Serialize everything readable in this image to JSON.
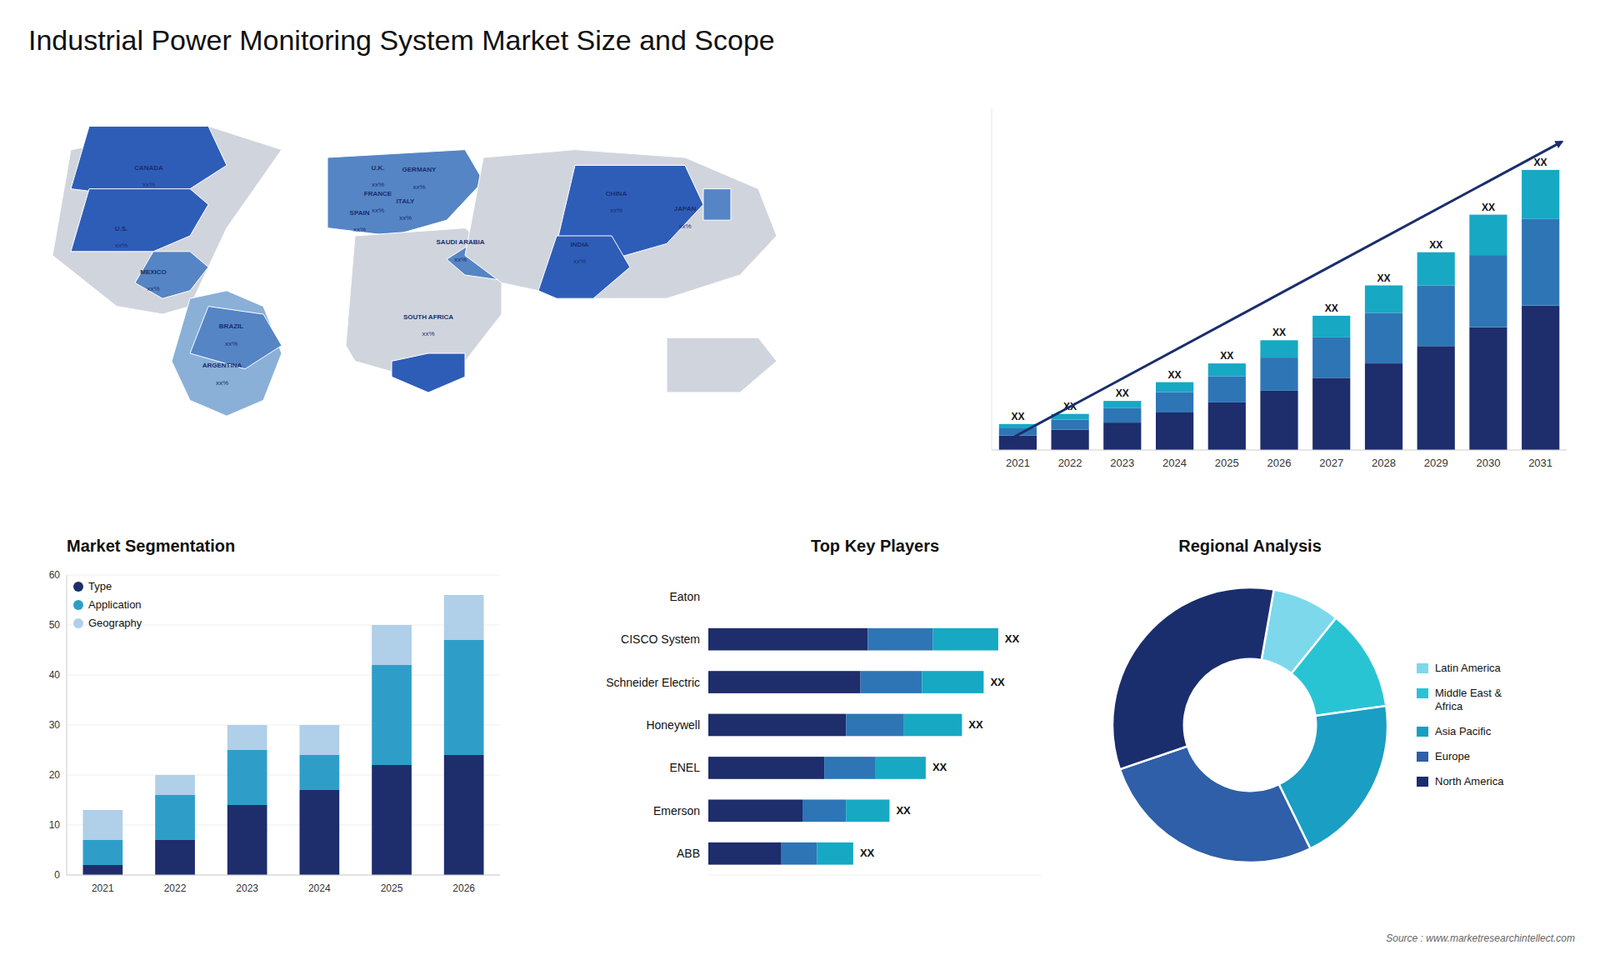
{
  "chart_data": [
    {
      "type": "map",
      "title": "Industrial Power Monitoring System Market Size and Scope",
      "categories": [
        "U.S.",
        "CANADA",
        "MEXICO",
        "BRAZIL",
        "ARGENTINA",
        "U.K.",
        "FRANCE",
        "SPAIN",
        "GERMANY",
        "ITALY",
        "SAUDI ARABIA",
        "SOUTH AFRICA",
        "CHINA",
        "INDIA",
        "JAPAN"
      ],
      "annotations": [
        "xx%",
        "xx%",
        "xx%",
        "xx%",
        "xx%",
        "xx%",
        "xx%",
        "xx%",
        "xx%",
        "xx%",
        "xx%",
        "xx%",
        "xx%",
        "xx%",
        "xx%"
      ],
      "colors": [
        "#2e5db8",
        "#2e5db8",
        "#5585c5",
        "#5585c5",
        "#8ab0d8",
        "#5585c5",
        "#5585c5",
        "#5585c5",
        "#5585c5",
        "#5585c5",
        "#5585c5",
        "#2e5db8",
        "#2e5db8",
        "#2e5db8",
        "#5585c5"
      ],
      "color": "#d0d5dd"
    },
    {
      "type": "bar",
      "stacked": true,
      "categories": [
        "2021",
        "2022",
        "2023",
        "2024",
        "2025",
        "2026",
        "2027",
        "2028",
        "2029",
        "2030",
        "2031"
      ],
      "series": [
        {
          "color": "#1e2d6b",
          "values": [
            1.0,
            1.4,
            1.9,
            2.6,
            3.3,
            4.1,
            5.0,
            6.0,
            7.2,
            8.5,
            10.0
          ]
        },
        {
          "color": "#2e75b6",
          "values": [
            0.5,
            0.7,
            1.0,
            1.4,
            1.8,
            2.3,
            2.8,
            3.5,
            4.2,
            5.0,
            6.0
          ]
        },
        {
          "color": "#17a8c4",
          "values": [
            0.3,
            0.4,
            0.5,
            0.7,
            0.9,
            1.2,
            1.5,
            1.9,
            2.3,
            2.8,
            3.4
          ]
        }
      ],
      "annotations": [
        "XX",
        "XX",
        "XX",
        "XX",
        "XX",
        "XX",
        "XX",
        "XX",
        "XX",
        "XX",
        "XX"
      ],
      "ylim": [
        0,
        23.668
      ],
      "tick_labels": "x",
      "grid": false
    },
    {
      "type": "bar",
      "title": "Market Segmentation",
      "stacked": true,
      "categories": [
        "2021",
        "2022",
        "2023",
        "2024",
        "2025",
        "2026"
      ],
      "series": [
        {
          "name": "Type",
          "color": "#1e2d6b",
          "values": [
            2,
            7,
            14,
            17,
            22,
            24
          ]
        },
        {
          "name": "Application",
          "color": "#2e9ec8",
          "values": [
            5,
            9,
            11,
            7,
            20,
            23
          ]
        },
        {
          "name": "Geography",
          "color": "#b0cfe8",
          "values": [
            6,
            4,
            5,
            6,
            8,
            9
          ]
        }
      ],
      "ylim": [
        0,
        60
      ],
      "yticks": [
        0,
        10,
        20,
        30,
        40,
        50,
        60
      ],
      "grid": true,
      "legend": "upper left"
    },
    {
      "type": "bar",
      "title": "Top Key Players",
      "orientation": "horizontal",
      "stacked": true,
      "categories": [
        "Eaton",
        "CISCO System",
        "Schneider Electric",
        "Honeywell",
        "ENEL",
        "Emerson",
        "ABB"
      ],
      "series": [
        {
          "color": "#1e2d6b",
          "values": [
            null,
            0.44,
            0.42,
            0.38,
            0.32,
            0.26,
            0.2
          ]
        },
        {
          "color": "#2e75b6",
          "values": [
            null,
            0.18,
            0.17,
            0.16,
            0.14,
            0.12,
            0.1
          ]
        },
        {
          "color": "#17a8c4",
          "values": [
            null,
            0.18,
            0.17,
            0.16,
            0.14,
            0.12,
            0.1
          ]
        }
      ],
      "annotations": [
        null,
        "XX",
        "XX",
        "XX",
        "XX",
        "XX",
        "XX"
      ],
      "xlim": [
        0,
        0.92
      ],
      "tick_labels": "y",
      "grid": false
    },
    {
      "type": "pie",
      "title": "Regional Analysis",
      "categories": [
        "Latin America",
        "Middle East &\nAfrica",
        "Asia Pacific",
        "Europe",
        "North America"
      ],
      "values": [
        0.08,
        0.12,
        0.2,
        0.27,
        0.33
      ],
      "colors": [
        "#7dd8ec",
        "#29c4d4",
        "#1a9ec4",
        "#2e5fa8",
        "#1a2e6e"
      ],
      "legend": "right",
      "annotations": [
        "Source : www.marketresearchintellect.com"
      ]
    }
  ]
}
